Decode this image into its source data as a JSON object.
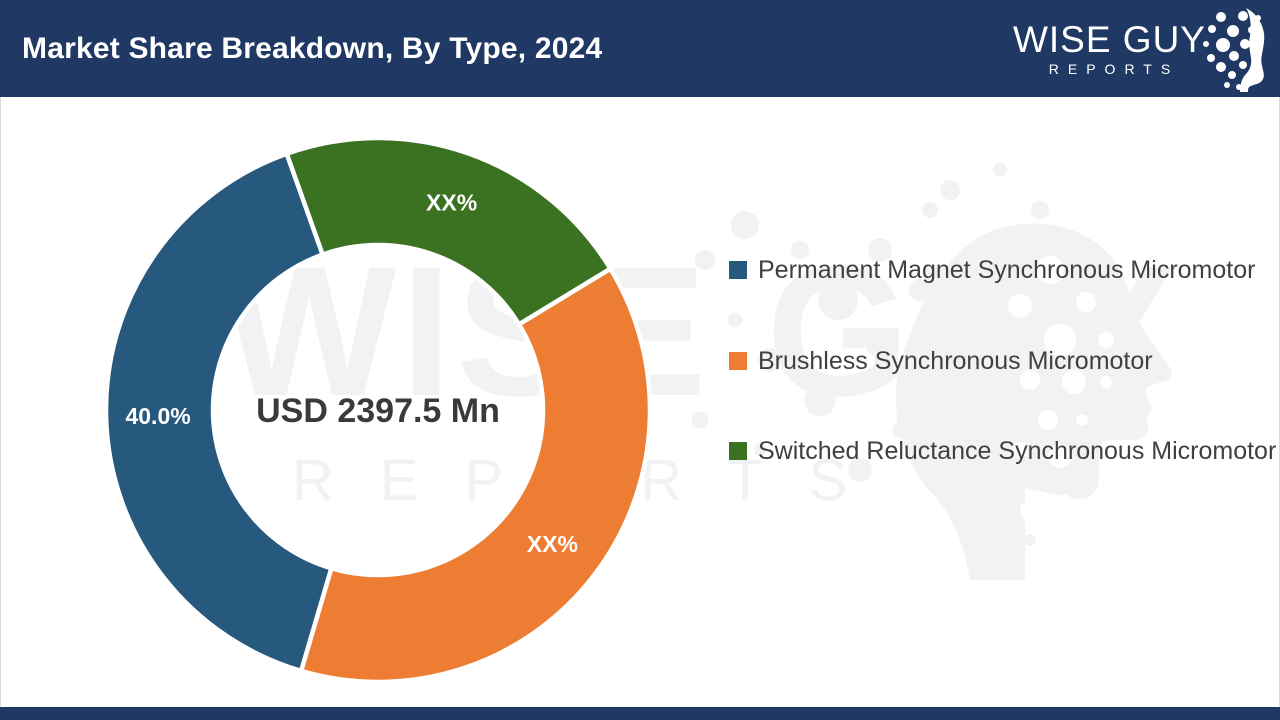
{
  "header": {
    "title": "Market Share Breakdown, By Type, 2024",
    "logo": {
      "line1": "WISE GUY",
      "line2": "REPORTS"
    }
  },
  "watermark": {
    "line1": "WISE GUY",
    "line2": "REPORTS"
  },
  "chart_data": {
    "type": "pie",
    "donut": true,
    "title": "Market Share Breakdown, By Type, 2024",
    "center_label": "USD 2397.5 Mn",
    "start_angle_deg": 109.6,
    "legend_position": "right",
    "series": [
      {
        "label": "Permanent Magnet Synchronous Micromotor",
        "value": 40.0,
        "display": "40.0%",
        "color": "#27587D"
      },
      {
        "label": "Brushless Synchronous Micromotor",
        "value": 38.25,
        "display": "XX%",
        "color": "#EC7D33"
      },
      {
        "label": "Switched Reluctance Synchronous Micromotor",
        "value": 21.75,
        "display": "XX%",
        "color": "#3B7221"
      }
    ],
    "colors": {
      "accent_navy": "#203864",
      "blue": "#27587D",
      "orange": "#EC7D33",
      "green": "#3B7221"
    }
  }
}
